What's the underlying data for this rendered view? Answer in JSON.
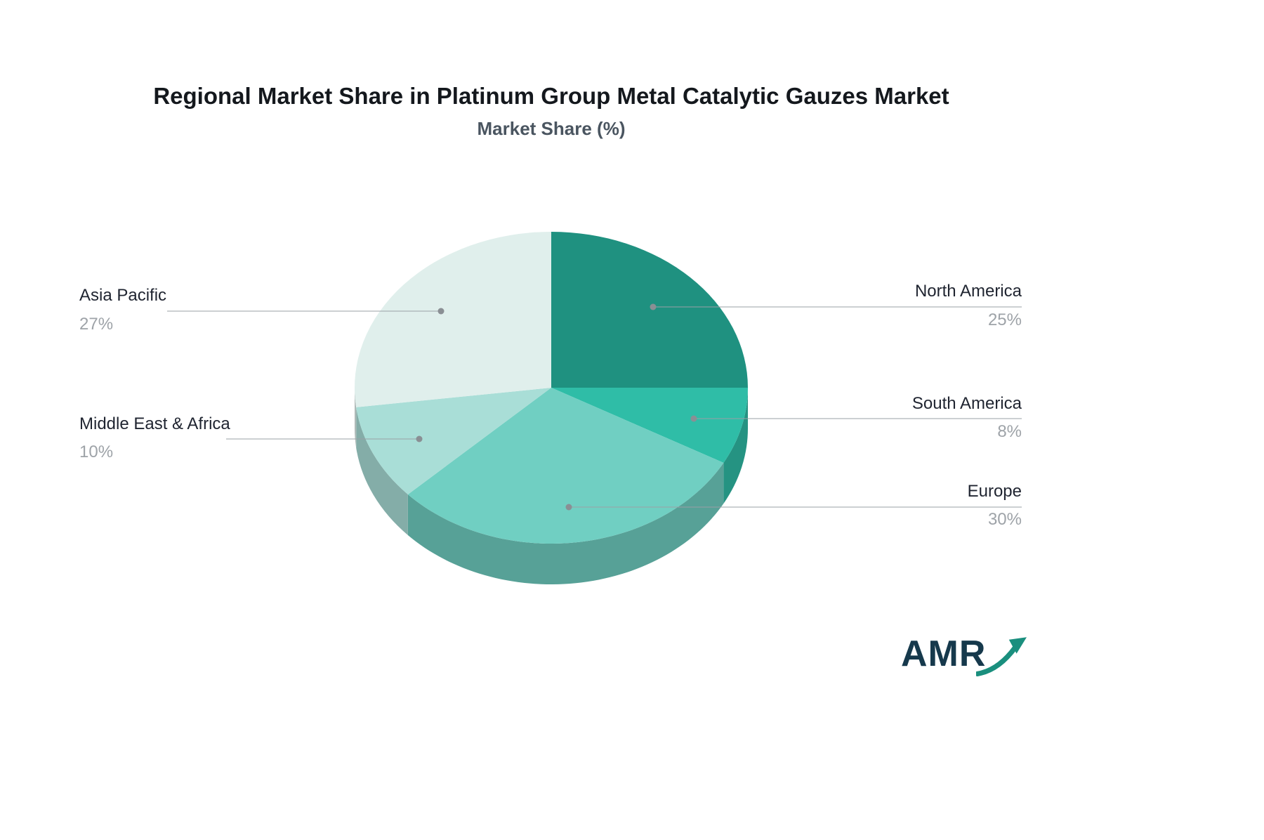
{
  "chart_data": {
    "type": "pie",
    "title": "Regional Market Share in Platinum Group Metal Catalytic Gauzes Market",
    "subtitle": "Market Share (%)",
    "categories": [
      "North America",
      "South America",
      "Europe",
      "Middle East & Africa",
      "Asia Pacific"
    ],
    "values": [
      25,
      8,
      30,
      10,
      27
    ],
    "value_labels": [
      "25%",
      "8%",
      "30%",
      "10%",
      "27%"
    ],
    "colors": [
      "#1f9180",
      "#2fbda7",
      "#70cfc2",
      "#a9ded7",
      "#e0efec"
    ],
    "start_angle_deg": 0,
    "direction": "clockwise",
    "style": "3d",
    "legend": "callout-labels",
    "accent_colors": {
      "leader_line": "#9aa0a6",
      "label_text": "#1f2430",
      "value_text": "#9ea3a8"
    }
  },
  "logo": {
    "text": "AMR",
    "color": "#16394c",
    "arrow_color": "#1a8f7e"
  }
}
